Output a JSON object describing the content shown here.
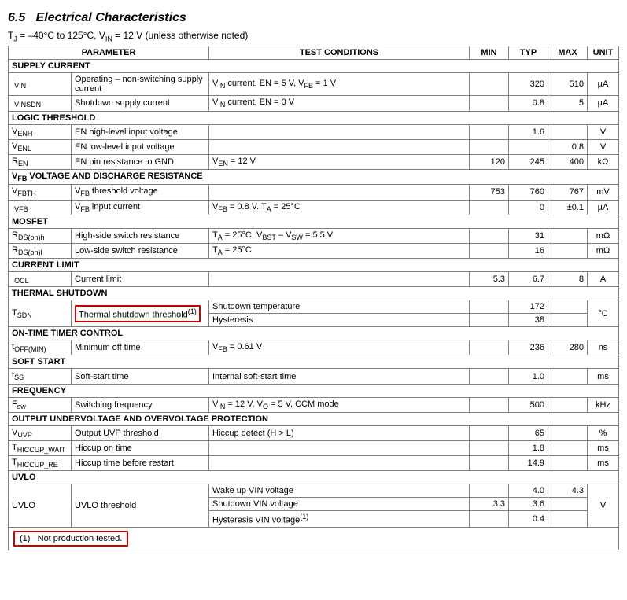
{
  "header": {
    "section_number": "6.5",
    "section_title": "Electrical Characteristics",
    "conditions_prefix": "T",
    "conditions_sub1": "J",
    "conditions_mid": " = –40°C to 125°C, V",
    "conditions_sub2": "IN",
    "conditions_end": " = 12 V (unless otherwise noted)"
  },
  "columns": {
    "parameter": "PARAMETER",
    "test_conditions": "TEST CONDITIONS",
    "min": "MIN",
    "typ": "TYP",
    "max": "MAX",
    "unit": "UNIT"
  },
  "sections": {
    "supply_current": "SUPPLY CURRENT",
    "logic_threshold": "LOGIC THRESHOLD",
    "vfb_voltage": "V",
    "vfb_voltage_sub": "FB",
    "vfb_voltage_rest": " VOLTAGE AND DISCHARGE RESISTANCE",
    "mosfet": "MOSFET",
    "current_limit": "CURRENT LIMIT",
    "thermal_shutdown": "THERMAL SHUTDOWN",
    "on_time": "ON-TIME TIMER CONTROL",
    "soft_start": "SOFT START",
    "frequency": "FREQUENCY",
    "output_uv_ov": "OUTPUT UNDERVOLTAGE AND OVERVOLTAGE PROTECTION",
    "uvlo": "UVLO"
  },
  "rows": {
    "ivin": {
      "sym_pre": "I",
      "sym_sub": "VIN",
      "desc": "Operating – non-switching supply current",
      "cond_pre": "V",
      "cond_sub": "IN",
      "cond_mid": " current, EN = 5 V, V",
      "cond_sub2": "FB",
      "cond_end": " = 1 V",
      "min": "",
      "typ": "320",
      "max": "510",
      "unit": "µA"
    },
    "ivinsdn": {
      "sym_pre": "I",
      "sym_sub": "VINSDN",
      "desc": "Shutdown supply current",
      "cond_pre": "V",
      "cond_sub": "IN",
      "cond_end": " current, EN = 0 V",
      "min": "",
      "typ": "0.8",
      "max": "5",
      "unit": "µA"
    },
    "venh": {
      "sym_pre": "V",
      "sym_sub": "ENH",
      "desc": "EN high-level input voltage",
      "cond": "",
      "min": "",
      "typ": "1.6",
      "max": "",
      "unit": "V"
    },
    "venl": {
      "sym_pre": "V",
      "sym_sub": "ENL",
      "desc": "EN low-level input voltage",
      "cond": "",
      "min": "",
      "typ": "",
      "max": "0.8",
      "unit": "V"
    },
    "ren": {
      "sym_pre": "R",
      "sym_sub": "EN",
      "desc": "EN pin resistance to GND",
      "cond_pre": "V",
      "cond_sub": "EN",
      "cond_end": " = 12 V",
      "min": "120",
      "typ": "245",
      "max": "400",
      "unit": "kΩ"
    },
    "vfbth": {
      "sym_pre": "V",
      "sym_sub": "FBTH",
      "desc_pre": "V",
      "desc_sub": "FB",
      "desc_end": " threshold voltage",
      "cond": "",
      "min": "753",
      "typ": "760",
      "max": "767",
      "unit": "mV"
    },
    "ivfb": {
      "sym_pre": "I",
      "sym_sub": "VFB",
      "desc_pre": "V",
      "desc_sub": "FB",
      "desc_end": " input current",
      "cond_pre": "V",
      "cond_sub": "FB",
      "cond_mid": " = 0.8 V. T",
      "cond_sub2": "A",
      "cond_end": " = 25°C",
      "min": "",
      "typ": "0",
      "max": "±0.1",
      "unit": "µA"
    },
    "rdsonh": {
      "sym_pre": "R",
      "sym_sub": "DS(on)h",
      "desc": "High-side switch resistance",
      "cond_pre": "T",
      "cond_sub": "A",
      "cond_mid": " = 25°C, V",
      "cond_sub2": "BST",
      "cond_mid2": " – V",
      "cond_sub3": "SW",
      "cond_end": " = 5.5 V",
      "min": "",
      "typ": "31",
      "max": "",
      "unit": "mΩ"
    },
    "rdsonl": {
      "sym_pre": "R",
      "sym_sub": "DS(on)l",
      "desc": "Low-side switch resistance",
      "cond_pre": "T",
      "cond_sub": "A",
      "cond_end": " = 25°C",
      "min": "",
      "typ": "16",
      "max": "",
      "unit": "mΩ"
    },
    "iocl": {
      "sym_pre": "I",
      "sym_sub": "OCL",
      "desc": "Current limit",
      "cond": "",
      "min": "5.3",
      "typ": "6.7",
      "max": "8",
      "unit": "A"
    },
    "tsdn": {
      "sym_pre": "T",
      "sym_sub": "SDN",
      "desc": "Thermal shutdown threshold",
      "desc_sup": "(1)",
      "cond1": "Shutdown temperature",
      "typ1": "172",
      "cond2": "Hysteresis",
      "typ2": "38",
      "unit": "°C"
    },
    "toffmin": {
      "sym_pre": "t",
      "sym_sub": "OFF(MIN)",
      "desc": "Minimum off time",
      "cond_pre": "V",
      "cond_sub": "FB",
      "cond_end": " = 0.61 V",
      "min": "",
      "typ": "236",
      "max": "280",
      "unit": "ns"
    },
    "tss": {
      "sym_pre": "t",
      "sym_sub": "SS",
      "desc": "Soft-start time",
      "cond": "Internal soft-start time",
      "min": "",
      "typ": "1.0",
      "max": "",
      "unit": "ms"
    },
    "fsw": {
      "sym_pre": "F",
      "sym_sub": "sw",
      "desc": "Switching frequency",
      "cond_pre": "V",
      "cond_sub": "IN",
      "cond_mid": " = 12 V, V",
      "cond_sub2": "O",
      "cond_end": " = 5 V, CCM mode",
      "min": "",
      "typ": "500",
      "max": "",
      "unit": "kHz"
    },
    "vuvp": {
      "sym_pre": "V",
      "sym_sub": "UVP",
      "desc": "Output UVP threshold",
      "cond": "Hiccup detect (H > L)",
      "min": "",
      "typ": "65",
      "max": "",
      "unit": "%"
    },
    "thiccupwait": {
      "sym_pre": "T",
      "sym_sub": "HICCUP_WAIT",
      "desc": "Hiccup on time",
      "cond": "",
      "min": "",
      "typ": "1.8",
      "max": "",
      "unit": "ms"
    },
    "thiccupre": {
      "sym_pre": "T",
      "sym_sub": "HICCUP_RE",
      "desc": "Hiccup time before restart",
      "cond": "",
      "min": "",
      "typ": "14.9",
      "max": "",
      "unit": "ms"
    },
    "uvlo": {
      "sym": "UVLO",
      "desc": "UVLO threshold",
      "cond1": "Wake up VIN voltage",
      "typ1": "4.0",
      "max1": "4.3",
      "cond2": "Shutdown VIN voltage",
      "min2": "3.3",
      "typ2": "3.6",
      "cond3": "Hysteresis VIN voltage",
      "cond3_sup": "(1)",
      "typ3": "0.4",
      "unit": "V"
    }
  },
  "footnote": {
    "num": "(1)",
    "text": "Not production tested."
  }
}
